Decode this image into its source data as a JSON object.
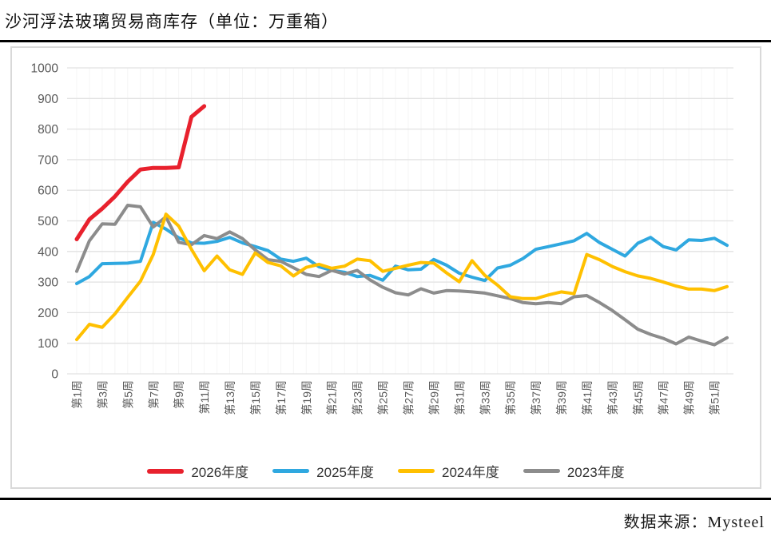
{
  "page": {
    "title": "沙河浮法玻璃贸易商库存（单位：万重箱）",
    "source_note": "数据来源：Mysteel"
  },
  "chart_data": {
    "type": "line",
    "title": "沙河浮法玻璃贸易商库存",
    "unit": "万重箱",
    "x_label_format": "第N周",
    "x_count": 52,
    "x_tick_labels": [
      "第1周",
      "第3周",
      "第5周",
      "第7周",
      "第9周",
      "第11周",
      "第13周",
      "第15周",
      "第17周",
      "第19周",
      "第21周",
      "第23周",
      "第25周",
      "第27周",
      "第29周",
      "第31周",
      "第33周",
      "第35周",
      "第37周",
      "第39周",
      "第41周",
      "第43周",
      "第45周",
      "第47周",
      "第49周",
      "第51周"
    ],
    "ylim": [
      0,
      1000
    ],
    "y_ticks": [
      0,
      100,
      200,
      300,
      400,
      500,
      600,
      700,
      800,
      900,
      1000
    ],
    "grid": "horizontal-major-plus-faint-weekly-vertical",
    "legend_position": "bottom-center",
    "colors": {
      "red_2026": "#e8212d",
      "blue_2025": "#2fa8e0",
      "gold_2024": "#ffc000",
      "gray_2023": "#8c8c8c",
      "gridline": "#e2e2e2",
      "axis_text": "#595959"
    },
    "series": [
      {
        "name": "2026年度",
        "color": "#e8212d",
        "start_week": 1,
        "values": [
          440,
          505,
          540,
          580,
          628,
          668,
          673,
          673,
          675,
          840,
          875
        ]
      },
      {
        "name": "2025年度",
        "color": "#2fa8e0",
        "start_week": 1,
        "values": [
          295,
          318,
          360,
          361,
          362,
          368,
          495,
          473,
          445,
          428,
          427,
          433,
          446,
          428,
          416,
          403,
          375,
          368,
          378,
          350,
          338,
          332,
          318,
          322,
          306,
          352,
          340,
          342,
          374,
          355,
          329,
          316,
          305,
          346,
          355,
          377,
          407,
          416,
          425,
          435,
          459,
          429,
          407,
          385,
          427,
          446,
          416,
          405,
          438,
          436,
          443,
          420
        ]
      },
      {
        "name": "2024年度",
        "color": "#ffc000",
        "start_week": 1,
        "values": [
          112,
          162,
          152,
          196,
          250,
          303,
          390,
          522,
          483,
          407,
          337,
          385,
          340,
          325,
          395,
          364,
          353,
          320,
          348,
          358,
          345,
          352,
          375,
          370,
          335,
          345,
          355,
          364,
          362,
          330,
          301,
          370,
          322,
          290,
          252,
          246,
          246,
          258,
          268,
          262,
          390,
          373,
          351,
          334,
          320,
          312,
          300,
          287,
          277,
          277,
          272,
          285
        ]
      },
      {
        "name": "2023年度",
        "color": "#8c8c8c",
        "start_week": 1,
        "values": [
          335,
          435,
          490,
          489,
          551,
          546,
          480,
          513,
          430,
          422,
          452,
          442,
          464,
          442,
          405,
          373,
          368,
          347,
          325,
          318,
          338,
          326,
          338,
          307,
          283,
          265,
          258,
          278,
          264,
          272,
          271,
          268,
          264,
          255,
          246,
          233,
          229,
          233,
          229,
          252,
          256,
          233,
          207,
          177,
          146,
          129,
          116,
          98,
          120,
          107,
          95,
          118
        ]
      }
    ]
  }
}
